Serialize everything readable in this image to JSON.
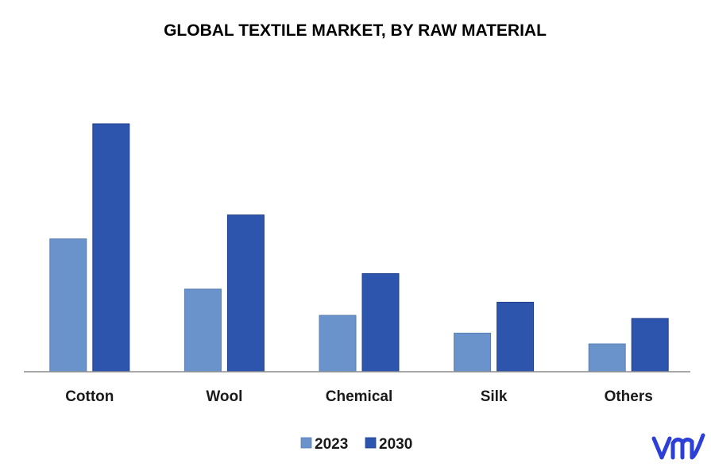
{
  "chart_data": {
    "type": "bar",
    "title": "GLOBAL TEXTILE MARKET, BY RAW MATERIAL",
    "xlabel": "",
    "ylabel": "",
    "categories": [
      "Cotton",
      "Wool",
      "Chemical",
      "Silk",
      "Others"
    ],
    "series": [
      {
        "name": "2023",
        "values": [
          172,
          107,
          73,
          50,
          36
        ],
        "color": "#6a93cb"
      },
      {
        "name": "2030",
        "values": [
          321,
          203,
          127,
          90,
          69
        ],
        "color": "#2e55ad"
      }
    ],
    "ylim": [
      0,
      360
    ],
    "grid": false,
    "legend_position": "bottom"
  },
  "logo": {
    "text": "vm",
    "color": "#2c3fd6"
  }
}
